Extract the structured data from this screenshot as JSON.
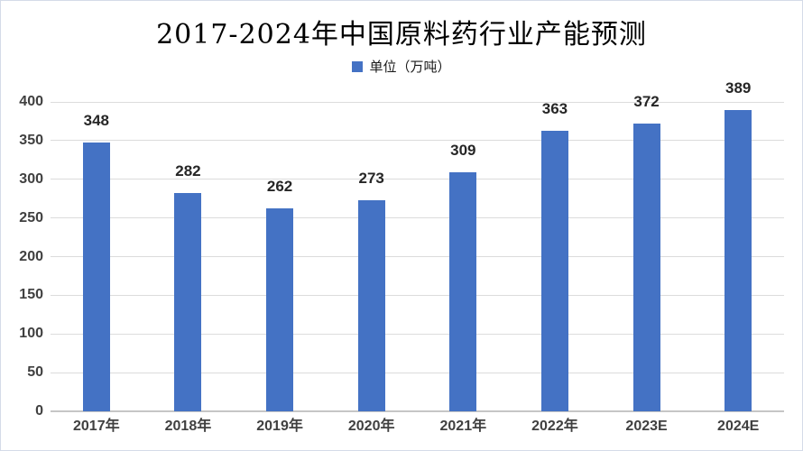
{
  "page": {
    "background": "#ffffff",
    "border_color": "#d4dbe8"
  },
  "chart": {
    "title": "2017-2024年中国原料药行业产能预测",
    "legend": {
      "label": "单位（万吨）",
      "swatch_color": "#4472C4"
    }
  },
  "chart_data": {
    "type": "bar",
    "title": "2017-2024年中国原料药行业产能预测",
    "legend": [
      "单位（万吨）"
    ],
    "legend_position": "top",
    "categories": [
      "2017年",
      "2018年",
      "2019年",
      "2020年",
      "2021年",
      "2022年",
      "2023E",
      "2024E"
    ],
    "values": [
      348,
      282,
      262,
      273,
      309,
      363,
      372,
      389
    ],
    "xlabel": "",
    "ylabel": "",
    "ylim": [
      0,
      400
    ],
    "yticks": [
      0,
      50,
      100,
      150,
      200,
      250,
      300,
      350,
      400
    ],
    "grid": true,
    "bar_color": "#4472C4",
    "tick_label_color": "#404040",
    "value_label_color": "#262626",
    "gridline_color": "#dcdcdc",
    "axis_line_color": "#c6c6c6"
  }
}
